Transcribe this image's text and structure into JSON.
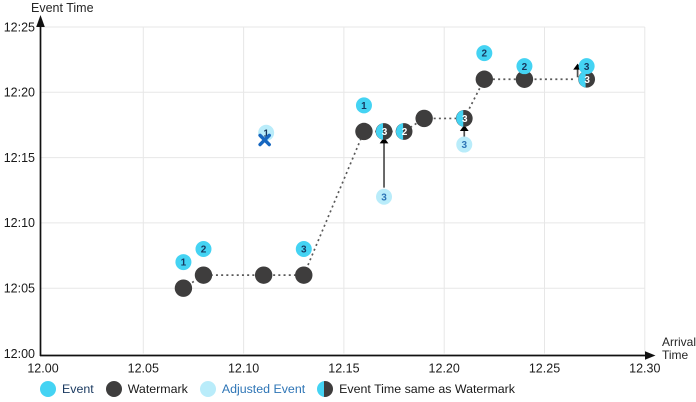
{
  "axis_labels": {
    "y_axis": "Event Time",
    "x_axis_line1": "Arrival",
    "x_axis_line2": "Time"
  },
  "chart_data": {
    "type": "scatter",
    "title": "",
    "x_axis": {
      "label": "Arrival Time",
      "range": [
        12.0,
        12.3
      ],
      "grid": true,
      "ticks": [
        {
          "value": 12.0,
          "label": "12.00"
        },
        {
          "value": 12.05,
          "label": "12.05"
        },
        {
          "value": 12.1,
          "label": "12.10"
        },
        {
          "value": 12.15,
          "label": "12.15"
        },
        {
          "value": 12.2,
          "label": "12.20"
        },
        {
          "value": 12.25,
          "label": "12.25"
        },
        {
          "value": 12.3,
          "label": "12.30"
        }
      ]
    },
    "y_axis": {
      "label": "Event Time",
      "range_minutes_after_12": [
        0,
        25
      ],
      "grid": true,
      "ticks": [
        {
          "minute": 0,
          "label": "12:00"
        },
        {
          "minute": 5,
          "label": "12:05"
        },
        {
          "minute": 10,
          "label": "12:10"
        },
        {
          "minute": 15,
          "label": "12:15"
        },
        {
          "minute": 20,
          "label": "12:20"
        },
        {
          "minute": 25,
          "label": "12:25"
        }
      ]
    },
    "events": [
      {
        "label": "1",
        "arrival": 12.07,
        "event_time": "12:07",
        "minute": 7
      },
      {
        "label": "2",
        "arrival": 12.08,
        "event_time": "12:08",
        "minute": 8
      },
      {
        "label": "3",
        "arrival": 12.13,
        "event_time": "12:08",
        "minute": 8
      },
      {
        "label": "1",
        "arrival": 12.16,
        "event_time": "12:19",
        "minute": 19
      },
      {
        "label": "2",
        "arrival": 12.22,
        "event_time": "12:23",
        "minute": 23
      },
      {
        "label": "2",
        "arrival": 12.24,
        "event_time": "12:22",
        "minute": 22
      },
      {
        "label": "3",
        "arrival": 12.271,
        "event_time": "12:22",
        "minute": 22
      }
    ],
    "watermarks": [
      {
        "arrival": 12.07,
        "event_time": "12:05",
        "minute": 5
      },
      {
        "arrival": 12.08,
        "event_time": "12:06",
        "minute": 6
      },
      {
        "arrival": 12.11,
        "event_time": "12:06",
        "minute": 6
      },
      {
        "arrival": 12.13,
        "event_time": "12:06",
        "minute": 6
      },
      {
        "arrival": 12.16,
        "event_time": "12:17",
        "minute": 17
      },
      {
        "arrival": 12.19,
        "event_time": "12:18",
        "minute": 18
      },
      {
        "arrival": 12.22,
        "event_time": "12:21",
        "minute": 21
      },
      {
        "arrival": 12.24,
        "event_time": "12:21",
        "minute": 21
      }
    ],
    "same_as_watermark": [
      {
        "label": "3",
        "arrival": 12.17,
        "event_time": "12:17",
        "minute": 17
      },
      {
        "label": "2",
        "arrival": 12.18,
        "event_time": "12:17",
        "minute": 17
      },
      {
        "label": "3",
        "arrival": 12.21,
        "event_time": "12:18",
        "minute": 18
      },
      {
        "label": "3",
        "arrival": 12.271,
        "event_time": "12:21",
        "minute": 21
      }
    ],
    "adjusted_events": [
      {
        "label": "3",
        "arrival": 12.17,
        "event_time": "12:12",
        "minute": 12,
        "adjusted_to": "12:17"
      },
      {
        "label": "3",
        "arrival": 12.21,
        "event_time": "12:16",
        "minute": 16,
        "adjusted_to": "12:18"
      }
    ],
    "dropped_event": {
      "label": "1",
      "arrival": 12.11,
      "event_time": "12:17",
      "minute": 16.9,
      "x_marker_minute": 16.35,
      "status": "dropped"
    },
    "watermark_path": [
      [
        12.07,
        5
      ],
      [
        12.08,
        6
      ],
      [
        12.13,
        6
      ],
      [
        12.16,
        17
      ],
      [
        12.18,
        17
      ],
      [
        12.19,
        18
      ],
      [
        12.21,
        18
      ],
      [
        12.22,
        21
      ],
      [
        12.24,
        21
      ],
      [
        12.2645,
        21
      ]
    ],
    "arrows": [
      {
        "x": 12.17,
        "from_minute": 12.7,
        "to_minute": 16.55
      },
      {
        "x": 12.21,
        "from_minute": 16.5,
        "to_minute": 17.5
      },
      {
        "x": 12.2665,
        "from_minute": 21.15,
        "to_minute": 22.2
      }
    ]
  },
  "legend": {
    "items": [
      {
        "key": "event",
        "label": "Event"
      },
      {
        "key": "watermark",
        "label": "Watermark"
      },
      {
        "key": "adjusted",
        "label": "Adjusted Event"
      },
      {
        "key": "half",
        "label": "Event Time same as Watermark"
      }
    ]
  },
  "colors": {
    "event": "#44d3f3",
    "watermark": "#3e3d3d",
    "adjusted": "#b9ecfa",
    "number_navy": "#17375e",
    "number_white": "#ffffff",
    "legend_event_text": "#17375e",
    "legend_adjusted_text": "#2e75b6",
    "text": "#1a1a1a",
    "grid": "#e7e7e7",
    "dotted_line": "#595959",
    "x_marker": "#1767c0",
    "arrow_line": "#4f4f4f",
    "axis": "#111111"
  }
}
